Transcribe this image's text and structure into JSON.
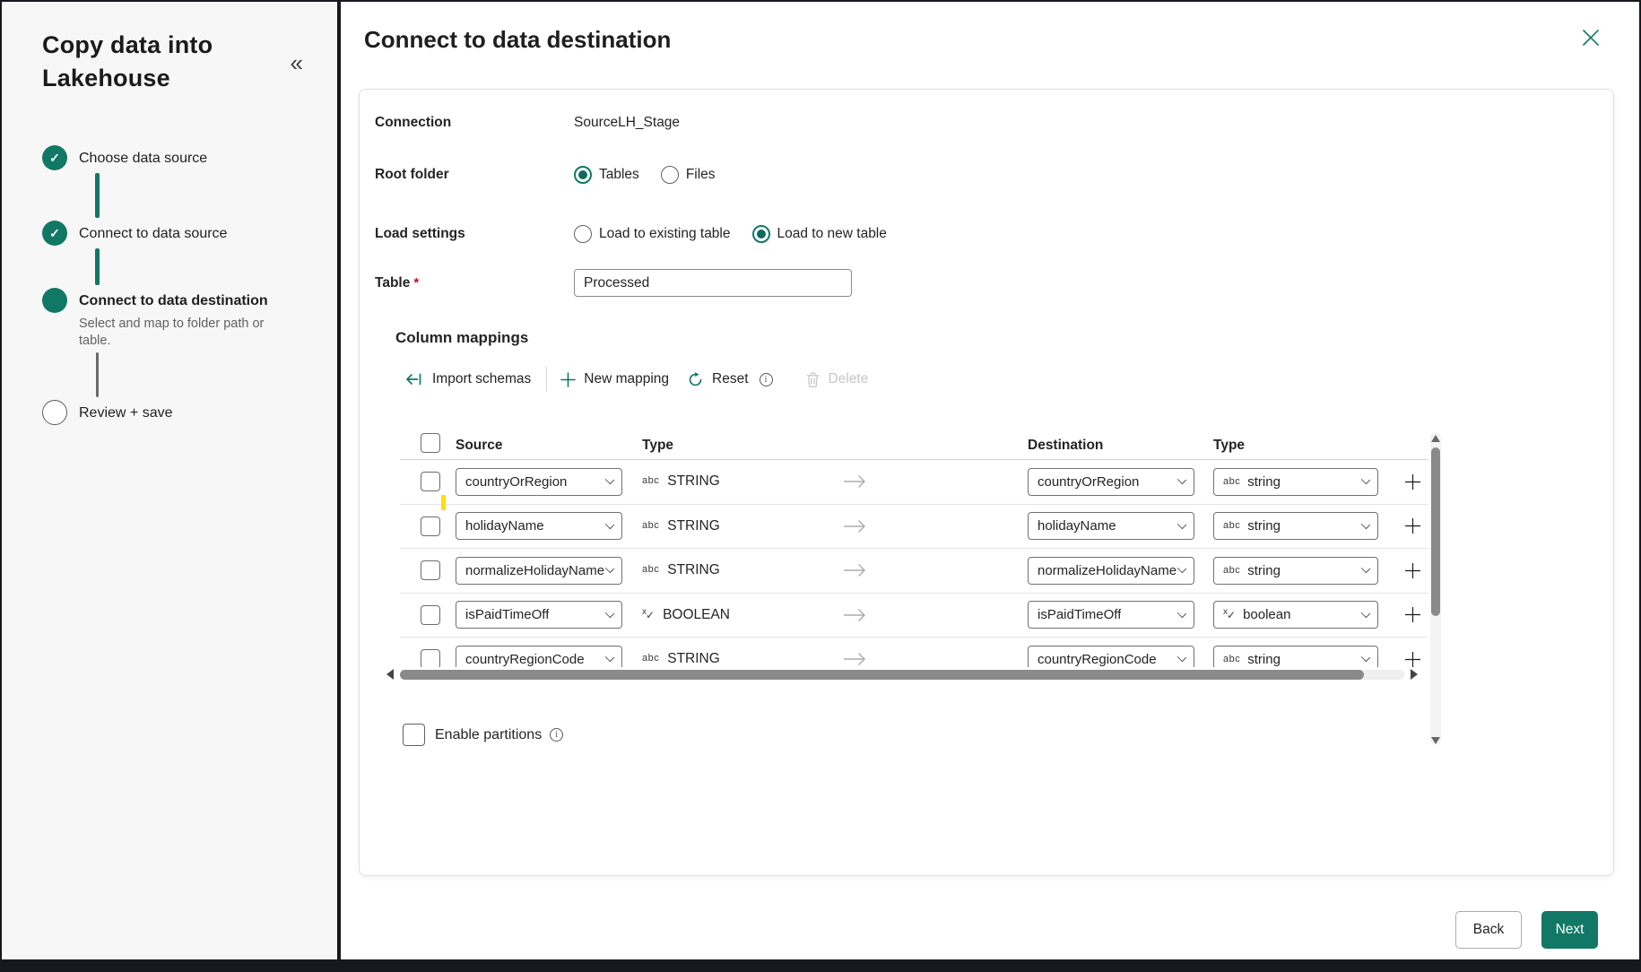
{
  "colors": {
    "accent": "#117865",
    "frame": "#17171F",
    "sidebar_bg": "#F7F7F7",
    "required": "#C50F1F",
    "disabled_text": "#C6C6C6"
  },
  "icons": {
    "collapse": "«",
    "check": "✓",
    "close": "close-x",
    "string_icon": "abc",
    "boolean_icon_x": "x",
    "boolean_icon_check": "✓",
    "info": "i"
  },
  "sidebar": {
    "title": "Copy data into Lakehouse",
    "steps": [
      {
        "label": "Choose data source",
        "state": "completed"
      },
      {
        "label": "Connect to data source",
        "state": "completed"
      },
      {
        "label": "Connect to data destination",
        "state": "current",
        "description": "Select and map to folder path or table."
      },
      {
        "label": "Review + save",
        "state": "upcoming"
      }
    ]
  },
  "header": {
    "title": "Connect to data destination"
  },
  "form": {
    "connection_label": "Connection",
    "connection_value": "SourceLH_Stage",
    "root_folder_label": "Root folder",
    "root_folder_options": [
      {
        "label": "Tables",
        "selected": true
      },
      {
        "label": "Files",
        "selected": false
      }
    ],
    "load_settings_label": "Load settings",
    "load_options": [
      {
        "label": "Load to existing table",
        "selected": false
      },
      {
        "label": "Load to new table",
        "selected": true
      }
    ],
    "table_label": "Table",
    "required_marker": "*",
    "table_value": "Processed"
  },
  "mappings": {
    "heading": "Column mappings",
    "toolbar": {
      "import_label": "Import schemas",
      "new_label": "New mapping",
      "reset_label": "Reset",
      "delete_label": "Delete"
    },
    "columns": {
      "source": "Source",
      "source_type": "Type",
      "destination": "Destination",
      "destination_type": "Type"
    },
    "rows": [
      {
        "source": "countryOrRegion",
        "source_type": "STRING",
        "destination": "countryOrRegion",
        "destination_type": "string",
        "kind": "string"
      },
      {
        "source": "holidayName",
        "source_type": "STRING",
        "destination": "holidayName",
        "destination_type": "string",
        "kind": "string"
      },
      {
        "source": "normalizeHolidayName",
        "source_type": "STRING",
        "destination": "normalizeHolidayName",
        "destination_type": "string",
        "kind": "string"
      },
      {
        "source": "isPaidTimeOff",
        "source_type": "BOOLEAN",
        "destination": "isPaidTimeOff",
        "destination_type": "boolean",
        "kind": "boolean"
      },
      {
        "source": "countryRegionCode",
        "source_type": "STRING",
        "destination": "countryRegionCode",
        "destination_type": "string",
        "kind": "string",
        "partial": true
      }
    ],
    "enable_partitions_label": "Enable partitions"
  },
  "footer": {
    "back_label": "Back",
    "next_label": "Next"
  }
}
